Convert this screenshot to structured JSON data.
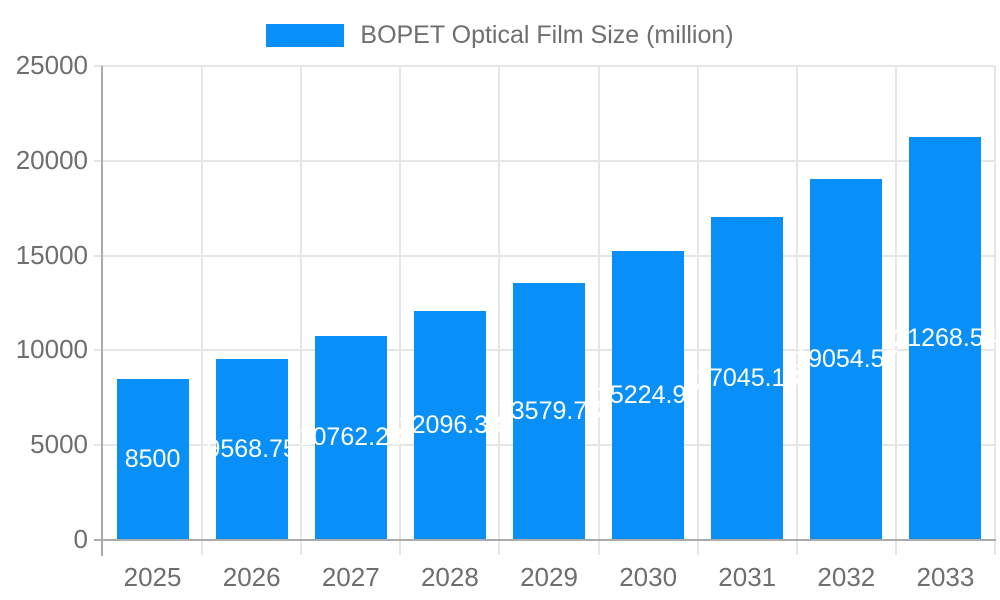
{
  "legend": {
    "label": "BOPET Optical Film Size (million)"
  },
  "colors": {
    "bar": "#0890f8",
    "bar_label": "#ffffff",
    "title": "#6e6e6e",
    "axis_label": "#6e6e6e",
    "axis_line": "#ababab",
    "gridline": "#e6e6e6",
    "background": "#ffffff"
  },
  "chart_data": {
    "type": "bar",
    "title": "BOPET Optical Film Size (million)",
    "categories": [
      "2025",
      "2026",
      "2027",
      "2028",
      "2029",
      "2030",
      "2031",
      "2032",
      "2033"
    ],
    "values": [
      8500,
      9568.75,
      10762.28,
      12096.33,
      13579.73,
      15224.97,
      17045.18,
      19054.57,
      21268.54
    ],
    "value_labels": [
      "8500",
      "9568.75",
      "10762.28",
      "12096.33",
      "13579.73",
      "15224.97",
      "17045.18",
      "19054.57",
      "21268.54"
    ],
    "xlabel": "",
    "ylabel": "",
    "ylim": [
      0,
      25000
    ],
    "yticks": [
      0,
      5000,
      10000,
      15000,
      20000,
      25000
    ],
    "ytick_labels": [
      "0",
      "5000",
      "10000",
      "15000",
      "20000",
      "25000"
    ],
    "grid": true,
    "legend_position": "top-center",
    "bar_label_position": "center-inside",
    "bar_label_color": "#ffffff"
  }
}
